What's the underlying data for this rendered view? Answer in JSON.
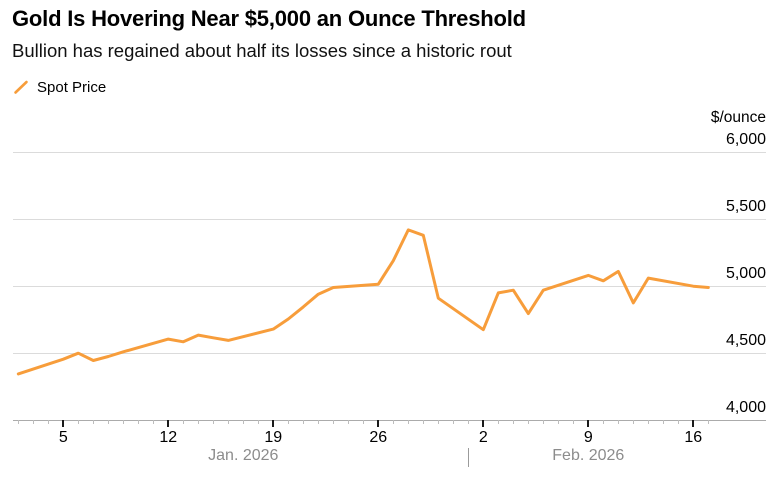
{
  "chart_data": {
    "type": "line",
    "title": "Gold Is Hovering Near $5,000 an Ounce Threshold",
    "subtitle": "Bullion has regained about half its losses since a historic rout",
    "unit_label": "$/ounce",
    "colors": {
      "series_orange": "#F79D3B",
      "gridline": "#DBDBDB",
      "axis_line": "#ABABAB",
      "minor_tick": "#BDBDBD",
      "major_tick": "#1A1A1A",
      "month_label_gray": "#8C8C8C"
    },
    "y_axis": {
      "min": 4000,
      "max": 6000,
      "ticks": [
        4000,
        4500,
        5000,
        5500,
        6000
      ],
      "tick_labels": [
        "4,000",
        "4,500",
        "5,000",
        "5,500",
        "6,000"
      ],
      "grid": true,
      "labels_position": "right"
    },
    "x_axis": {
      "range_day_offsets": [
        0,
        46
      ],
      "minor_ticks": "daily",
      "major_ticks": [
        {
          "day_offset": 3,
          "label": "5"
        },
        {
          "day_offset": 10,
          "label": "12"
        },
        {
          "day_offset": 17,
          "label": "19"
        },
        {
          "day_offset": 24,
          "label": "26"
        },
        {
          "day_offset": 31,
          "label": "2"
        },
        {
          "day_offset": 38,
          "label": "9"
        },
        {
          "day_offset": 45,
          "label": "16"
        }
      ],
      "months": [
        {
          "label": "Jan. 2026",
          "span_day_offsets": [
            0,
            30
          ]
        },
        {
          "label": "Feb. 2026",
          "span_day_offsets": [
            30,
            46
          ]
        }
      ],
      "month_separator_day_offset": 30
    },
    "series": [
      {
        "name": "Spot Price",
        "color": "#F79D3B",
        "points": [
          {
            "date": "Jan 2",
            "day_offset": 0,
            "value": 4340
          },
          {
            "date": "Jan 5",
            "day_offset": 3,
            "value": 4450
          },
          {
            "date": "Jan 6",
            "day_offset": 4,
            "value": 4495
          },
          {
            "date": "Jan 7",
            "day_offset": 5,
            "value": 4440
          },
          {
            "date": "Jan 8",
            "day_offset": 6,
            "value": 4470
          },
          {
            "date": "Jan 9",
            "day_offset": 7,
            "value": 4505
          },
          {
            "date": "Jan 12",
            "day_offset": 10,
            "value": 4600
          },
          {
            "date": "Jan 13",
            "day_offset": 11,
            "value": 4580
          },
          {
            "date": "Jan 14",
            "day_offset": 12,
            "value": 4630
          },
          {
            "date": "Jan 15",
            "day_offset": 13,
            "value": 4610
          },
          {
            "date": "Jan 16",
            "day_offset": 14,
            "value": 4590
          },
          {
            "date": "Jan 19",
            "day_offset": 17,
            "value": 4675
          },
          {
            "date": "Jan 20",
            "day_offset": 18,
            "value": 4750
          },
          {
            "date": "Jan 21",
            "day_offset": 19,
            "value": 4840
          },
          {
            "date": "Jan 22",
            "day_offset": 20,
            "value": 4935
          },
          {
            "date": "Jan 23",
            "day_offset": 21,
            "value": 4985
          },
          {
            "date": "Jan 26",
            "day_offset": 24,
            "value": 5010
          },
          {
            "date": "Jan 27",
            "day_offset": 25,
            "value": 5185
          },
          {
            "date": "Jan 28",
            "day_offset": 26,
            "value": 5415
          },
          {
            "date": "Jan 29",
            "day_offset": 27,
            "value": 5375
          },
          {
            "date": "Jan 30",
            "day_offset": 28,
            "value": 4905
          },
          {
            "date": "Feb 2",
            "day_offset": 31,
            "value": 4670
          },
          {
            "date": "Feb 3",
            "day_offset": 32,
            "value": 4945
          },
          {
            "date": "Feb 4",
            "day_offset": 33,
            "value": 4965
          },
          {
            "date": "Feb 5",
            "day_offset": 34,
            "value": 4790
          },
          {
            "date": "Feb 6",
            "day_offset": 35,
            "value": 4965
          },
          {
            "date": "Feb 9",
            "day_offset": 38,
            "value": 5075
          },
          {
            "date": "Feb 10",
            "day_offset": 39,
            "value": 5035
          },
          {
            "date": "Feb 11",
            "day_offset": 40,
            "value": 5105
          },
          {
            "date": "Feb 12",
            "day_offset": 41,
            "value": 4870
          },
          {
            "date": "Feb 13",
            "day_offset": 42,
            "value": 5055
          },
          {
            "date": "Feb 16",
            "day_offset": 45,
            "value": 4995
          },
          {
            "date": "Feb 17",
            "day_offset": 46,
            "value": 4985
          }
        ]
      }
    ]
  }
}
